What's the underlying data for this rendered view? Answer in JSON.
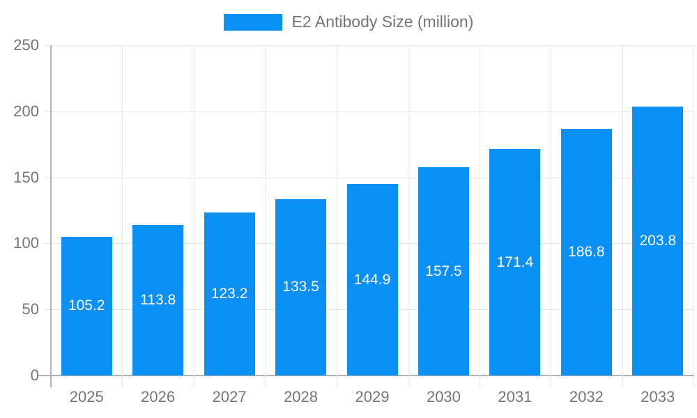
{
  "chart_data": {
    "type": "bar",
    "title": "E2 Antibody Size (million)",
    "categories": [
      "2025",
      "2026",
      "2027",
      "2028",
      "2029",
      "2030",
      "2031",
      "2032",
      "2033"
    ],
    "values": [
      105.2,
      113.8,
      123.2,
      133.5,
      144.9,
      157.5,
      171.4,
      186.8,
      203.8
    ],
    "value_labels": [
      "105.2",
      "113.8",
      "123.2",
      "133.5",
      "144.9",
      "157.5",
      "171.4",
      "186.8",
      "203.8"
    ],
    "series": [
      {
        "name": "E2 Antibody Size (million)",
        "values": [
          105.2,
          113.8,
          123.2,
          133.5,
          144.9,
          157.5,
          171.4,
          186.8,
          203.8
        ]
      }
    ],
    "xlabel": "",
    "ylabel": "",
    "ylim": [
      0,
      250
    ],
    "y_ticks": [
      0,
      50,
      100,
      150,
      200,
      250
    ],
    "grid": "on",
    "legend_position": "top-center",
    "value_label_position": "inside-center"
  },
  "colors": {
    "bar": "#0a8ff5",
    "text": "#757575",
    "bar_label": "#ffffff",
    "gridline": "#e6e6e6",
    "axis": "#b3b3b3"
  }
}
